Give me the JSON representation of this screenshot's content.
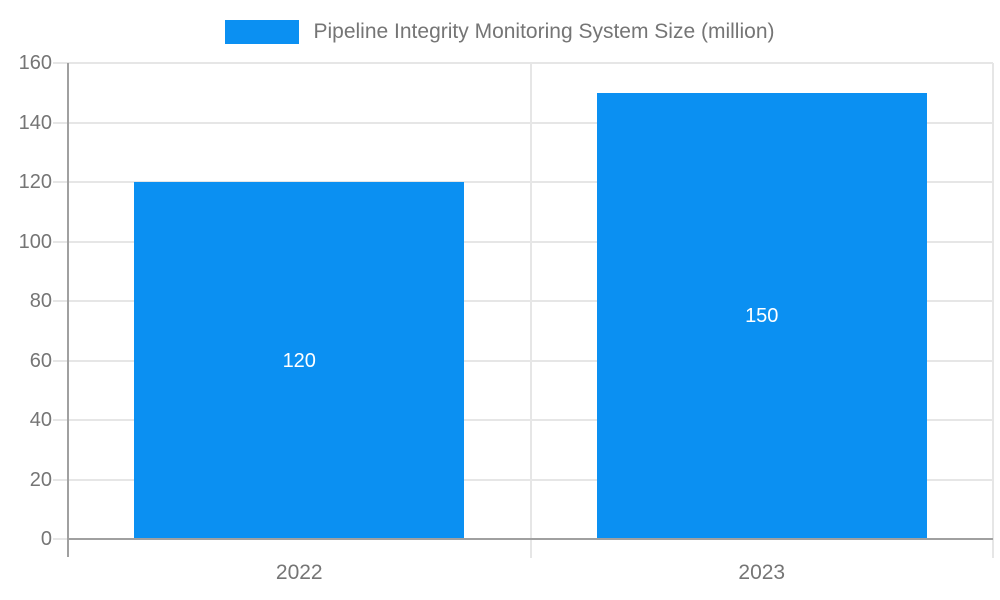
{
  "chart_data": {
    "type": "bar",
    "title": "Pipeline Integrity Monitoring System Size (million)",
    "categories": [
      "2022",
      "2023"
    ],
    "values": [
      120,
      150
    ],
    "bar_labels": [
      "120",
      "150"
    ],
    "xlabel": "",
    "ylabel": "",
    "ylim": [
      0,
      160
    ],
    "ytick_step": 20,
    "yticks": [
      0,
      20,
      40,
      60,
      80,
      100,
      120,
      140,
      160
    ],
    "grid": true,
    "legend_position": "top-center",
    "legend_entries": [
      "Pipeline Integrity Monitoring System Size (million)"
    ],
    "colors": {
      "bar": "#0b90f2",
      "bar_label_text": "#ffffff",
      "axis_line": "#a0a0a0",
      "gridline": "#e6e6e6",
      "tick_label_text": "#757575",
      "legend_text": "#757575",
      "background": "#ffffff"
    }
  }
}
